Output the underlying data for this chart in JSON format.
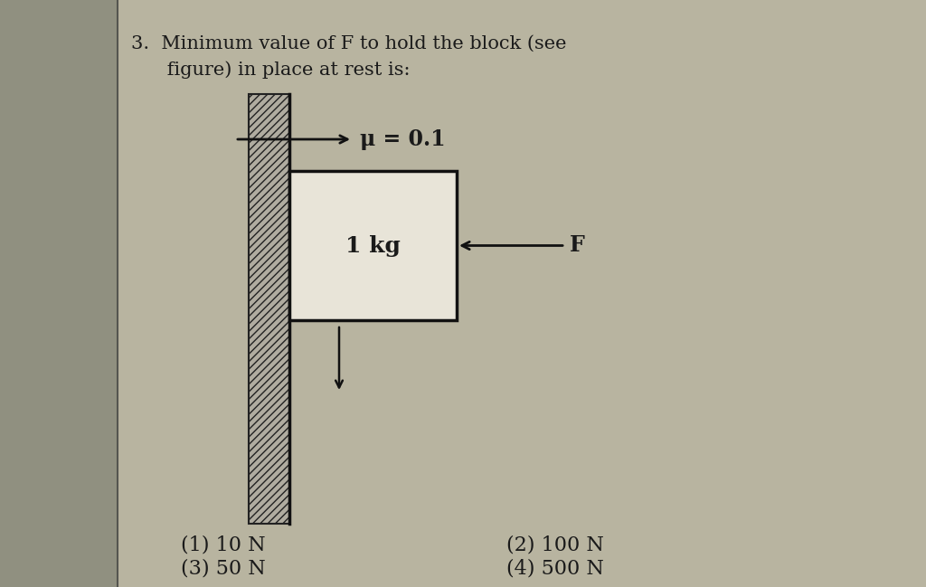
{
  "bg_color": "#b8b4a0",
  "left_margin_color": "#888880",
  "paper_color": "#c8c4b0",
  "title_line1": "3.  Minimum value of F to hold the block (see",
  "title_line2": "      figure) in place at rest is:",
  "title_fontsize": 15,
  "mu_label": "μ = 0.1",
  "mass_label": "1 kg",
  "force_label": "F",
  "options_1": "(1) 10 N",
  "options_2": "(2) 100 N",
  "options_3": "(3) 50 N",
  "options_4": "(4) 500 N",
  "text_color": "#1a1a1a",
  "wall_hatch_color": "#222222",
  "block_edge_color": "#111111",
  "block_face_color": "#e8e4d8",
  "arrow_color": "#111111"
}
